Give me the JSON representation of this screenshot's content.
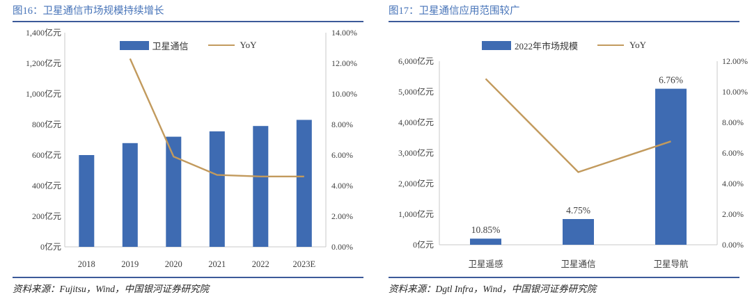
{
  "colors": {
    "bar": "#3E6BB2",
    "line": "#C29A5D",
    "title": "#4673B8",
    "rule": "#3C5A99",
    "tick_text": "#404040",
    "axis_line": "#C9C9C9"
  },
  "panels": [
    {
      "title": "图16：卫星通信市场规模持续增长",
      "source": "资料来源：Fujitsu，Wind，中国银河证券研究院",
      "legend": [
        {
          "swatch": "bar",
          "label": "卫星通信"
        },
        {
          "swatch": "line",
          "label": "YoY"
        }
      ]
    },
    {
      "title": "图17：卫星通信应用范围较广",
      "source": "资料来源：Dgtl Infra，Wind，中国银河证券研究院",
      "legend": [
        {
          "swatch": "bar",
          "label": "2022年市场规模"
        },
        {
          "swatch": "line",
          "label": "YoY"
        }
      ]
    }
  ],
  "chart_data": [
    {
      "type": "bar",
      "title": "卫星通信市场规模持续增长",
      "categories": [
        "2018",
        "2019",
        "2020",
        "2021",
        "2022",
        "2023E"
      ],
      "series": [
        {
          "name": "卫星通信",
          "type": "bar",
          "axis": "left",
          "values": [
            600,
            678,
            720,
            755,
            790,
            830
          ]
        },
        {
          "name": "YoY",
          "type": "line",
          "axis": "right",
          "values": [
            null,
            12.3,
            5.9,
            4.7,
            4.6,
            4.6
          ]
        }
      ],
      "left_axis": {
        "min": 0,
        "max": 1400,
        "unit": "亿元",
        "ticks": [
          "0亿元",
          "200亿元",
          "400亿元",
          "600亿元",
          "800亿元",
          "1,000亿元",
          "1,200亿元",
          "1,400亿元"
        ]
      },
      "right_axis": {
        "min": 0,
        "max": 14,
        "unit": "%",
        "ticks": [
          "0.00%",
          "2.00%",
          "4.00%",
          "6.00%",
          "8.00%",
          "10.00%",
          "12.00%",
          "14.00%"
        ]
      },
      "legend_position": "top-center",
      "grid": false
    },
    {
      "type": "bar",
      "title": "卫星通信应用范围较广",
      "categories": [
        "卫星遥感",
        "卫星通信",
        "卫星导航"
      ],
      "series": [
        {
          "name": "2022年市场规模",
          "type": "bar",
          "axis": "left",
          "values": [
            200,
            840,
            5100
          ]
        },
        {
          "name": "YoY",
          "type": "line",
          "axis": "right",
          "values": [
            10.85,
            4.75,
            6.76
          ],
          "labels": [
            "10.85%",
            "4.75%",
            "6.76%"
          ]
        }
      ],
      "left_axis": {
        "min": 0,
        "max": 6000,
        "unit": "亿元",
        "ticks": [
          "0亿元",
          "1,000亿元",
          "2,000亿元",
          "3,000亿元",
          "4,000亿元",
          "5,000亿元",
          "6,000亿元"
        ]
      },
      "right_axis": {
        "min": 0,
        "max": 12,
        "unit": "%",
        "ticks": [
          "0.00%",
          "2.00%",
          "4.00%",
          "6.00%",
          "8.00%",
          "10.00%",
          "12.00%"
        ]
      },
      "legend_position": "top-center",
      "grid": false
    }
  ]
}
